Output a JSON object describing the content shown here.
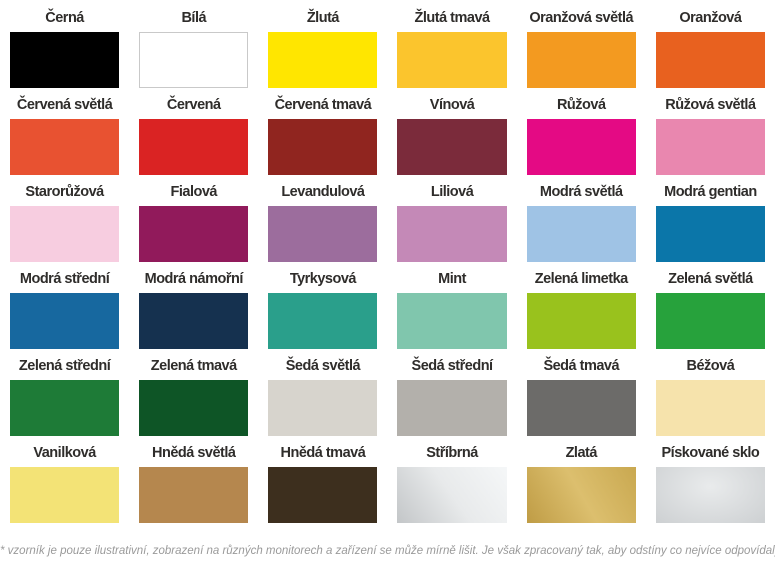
{
  "caption": "* vzorník je pouze ilustrativní, zobrazení na různých monitorech a zařízení se může mírně lišit. Je však zpracovaný tak, aby odstíny co nejvíce odpovídaly.",
  "label_color": "#2f2d2b",
  "caption_color": "#9a9a9a",
  "swatches": [
    {
      "label": "Černá",
      "color": "#000000"
    },
    {
      "label": "Bílá",
      "color": "#FFFFFF",
      "border": "#C9C9C9"
    },
    {
      "label": "Žlutá",
      "color": "#FFE600"
    },
    {
      "label": "Žlutá tmavá",
      "color": "#FBC52D"
    },
    {
      "label": "Oranžová světlá",
      "color": "#F39A20"
    },
    {
      "label": "Oranžová",
      "color": "#E8611F"
    },
    {
      "label": "Červená světlá",
      "color": "#E85231"
    },
    {
      "label": "Červená",
      "color": "#DA2323"
    },
    {
      "label": "Červená tmavá",
      "color": "#90251F"
    },
    {
      "label": "Vínová",
      "color": "#7B2B3B"
    },
    {
      "label": "Růžová",
      "color": "#E40A84"
    },
    {
      "label": "Růžová světlá",
      "color": "#E987AF"
    },
    {
      "label": "Starorůžová",
      "color": "#F7CDE0"
    },
    {
      "label": "Fialová",
      "color": "#911A5B"
    },
    {
      "label": "Levandulová",
      "color": "#9C6D9D"
    },
    {
      "label": "Liliová",
      "color": "#C489B7"
    },
    {
      "label": "Modrá světlá",
      "color": "#9FC3E5"
    },
    {
      "label": "Modrá gentian",
      "color": "#0B76A9"
    },
    {
      "label": "Modrá střední",
      "color": "#17689F"
    },
    {
      "label": "Modrá námořní",
      "color": "#15314F"
    },
    {
      "label": "Tyrkysová",
      "color": "#2A9F8B"
    },
    {
      "label": "Mint",
      "color": "#80C6AD"
    },
    {
      "label": "Zelená limetka",
      "color": "#99C21D"
    },
    {
      "label": "Zelená světlá",
      "color": "#27A23C"
    },
    {
      "label": "Zelená střední",
      "color": "#1E7B37"
    },
    {
      "label": "Zelená tmavá",
      "color": "#0E5526"
    },
    {
      "label": "Šedá světlá",
      "color": "#D7D4CD"
    },
    {
      "label": "Šedá střední",
      "color": "#B3B0AB"
    },
    {
      "label": "Šedá tmavá",
      "color": "#6C6B69"
    },
    {
      "label": "Béžová",
      "color": "#F6E3AC"
    },
    {
      "label": "Vanilková",
      "color": "#F3E376"
    },
    {
      "label": "Hnědá světlá",
      "color": "#B5874E"
    },
    {
      "label": "Hnědá tmavá",
      "color": "#3D2F1E"
    },
    {
      "label": "Stříbrná",
      "gradient": {
        "type": "linear",
        "angle": 55,
        "stops": [
          "#C3C6C8",
          "#E8EAEB",
          "#F5F7F8"
        ]
      }
    },
    {
      "label": "Zlatá",
      "gradient": {
        "type": "linear",
        "angle": 60,
        "stops": [
          "#BF9C45",
          "#DCBF6E",
          "#C9A850"
        ]
      }
    },
    {
      "label": "Pískované sklo",
      "gradient": {
        "type": "radial",
        "stops": [
          "#E9EBEC",
          "#CDD0D2"
        ]
      }
    }
  ]
}
